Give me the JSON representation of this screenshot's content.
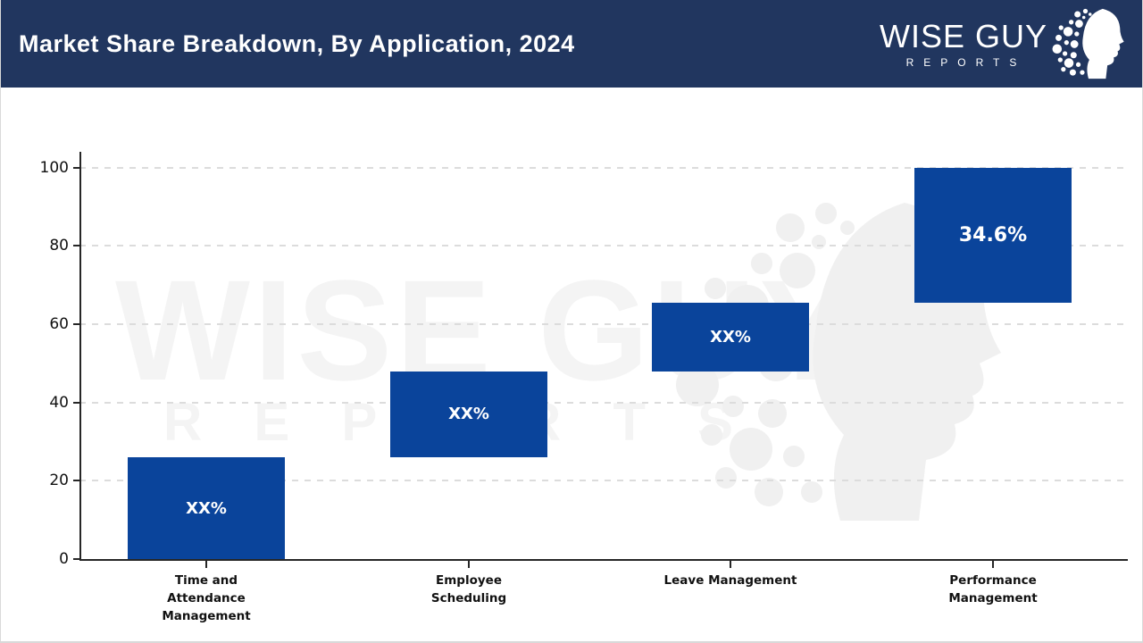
{
  "header": {
    "title": "Market Share Breakdown, By Application, 2024",
    "logo": {
      "line1": "WISE GUY",
      "line2": "REPORTS",
      "icon": "dotted-head-profile-icon"
    }
  },
  "watermark": {
    "line1": "WISE GUY",
    "line2": "REPORTS",
    "icon": "dotted-head-profile-icon"
  },
  "colors": {
    "header_bg": "#21365f",
    "bar_fill": "#0a449b",
    "bar_label_text": "#ffffff",
    "axis": "#262626",
    "gridline": "#dcdcdc",
    "title_text": "#ffffff",
    "tick_label_text": "#111111"
  },
  "chart_data": {
    "type": "bar",
    "style": "floating-waterfall",
    "title": "Market Share Breakdown, By Application, 2024",
    "xlabel": "",
    "ylabel": "",
    "ylim": [
      0,
      100
    ],
    "yticks": [
      0,
      20,
      40,
      60,
      80,
      100
    ],
    "grid": "horizontal-dashed",
    "legend": "none",
    "categories": [
      "Time and\nAttendance\nManagement",
      "Employee\nScheduling",
      "Leave Management",
      "Performance\nManagement"
    ],
    "segments": [
      {
        "category": "Time and Attendance Management",
        "start": 0,
        "end": 26,
        "label": "XX%"
      },
      {
        "category": "Employee Scheduling",
        "start": 26,
        "end": 48,
        "label": "XX%"
      },
      {
        "category": "Leave Management",
        "start": 48,
        "end": 65.4,
        "label": "XX%"
      },
      {
        "category": "Performance Management",
        "start": 65.4,
        "end": 100,
        "label": "34.6%"
      }
    ]
  }
}
